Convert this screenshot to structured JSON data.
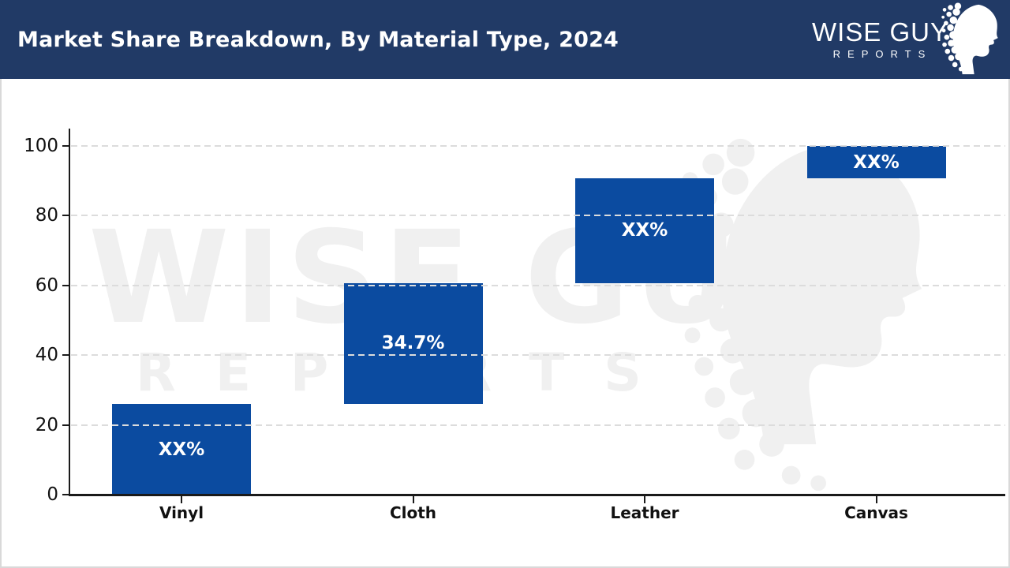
{
  "header": {
    "title": "Market Share Breakdown, By Material Type, 2024",
    "logo": {
      "line1": "WISE GUY",
      "line2": "REPORTS"
    }
  },
  "watermark": {
    "line1": "WISE GUY",
    "line2": "REPORTS"
  },
  "chart_data": {
    "type": "bar",
    "subtype": "waterfall",
    "title": "Market Share Breakdown, By Material Type, 2024",
    "categories": [
      "Vinyl",
      "Cloth",
      "Leather",
      "Canvas"
    ],
    "segments": [
      {
        "category": "Vinyl",
        "start": 0,
        "end": 26,
        "label": "XX%"
      },
      {
        "category": "Cloth",
        "start": 26,
        "end": 60.7,
        "label": "34.7%"
      },
      {
        "category": "Leather",
        "start": 60.7,
        "end": 90.7,
        "label": "XX%"
      },
      {
        "category": "Canvas",
        "start": 90.7,
        "end": 100,
        "label": "XX%"
      }
    ],
    "yticks": [
      0,
      20,
      40,
      60,
      80,
      100
    ],
    "ylim": [
      0,
      105
    ],
    "xlabel": "",
    "ylabel": "",
    "grid": "horizontal-dashed",
    "legend": "none",
    "bar_color": "#0B4BA0",
    "label_color": "#ffffff"
  },
  "colors": {
    "header_bg": "#213A66",
    "bar": "#0B4BA0",
    "grid": "#DCDCDC",
    "axis": "#1a1a1a",
    "watermark": "#F0F0F0",
    "edge_border": "#D9D9D9"
  }
}
